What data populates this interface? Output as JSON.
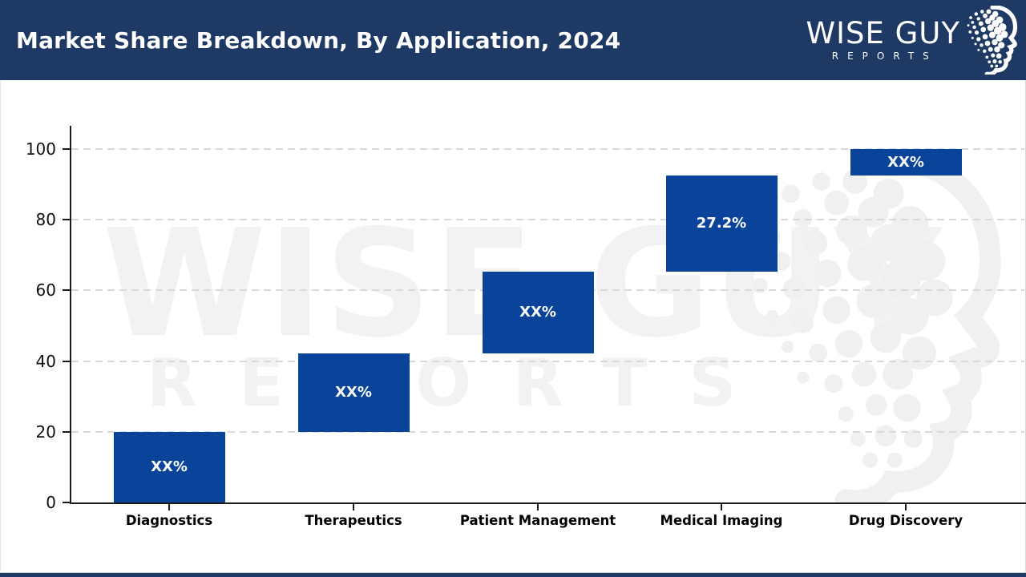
{
  "header": {
    "title": "Market Share Breakdown, By Application, 2024",
    "logo": {
      "name": "WISE GUY",
      "tagline": "REPORTS"
    }
  },
  "watermark": {
    "line1": "WISE GUY",
    "line2": "REPORTS"
  },
  "chart_data": {
    "type": "bar",
    "subtype": "waterfall-floating-segments",
    "title": "Market Share Breakdown, By Application, 2024",
    "categories": [
      "Diagnostics",
      "Therapeutics",
      "Patient Management",
      "Medical Imaging",
      "Drug Discovery"
    ],
    "segments": [
      {
        "category": "Diagnostics",
        "label": "XX%",
        "start": 0,
        "end": 20
      },
      {
        "category": "Therapeutics",
        "label": "XX%",
        "start": 20,
        "end": 42.2
      },
      {
        "category": "Patient Management",
        "label": "XX%",
        "start": 42.2,
        "end": 65.3
      },
      {
        "category": "Medical Imaging",
        "label": "27.2%",
        "start": 65.3,
        "end": 92.5
      },
      {
        "category": "Drug Discovery",
        "label": "XX%",
        "start": 92.5,
        "end": 100
      }
    ],
    "yticks": [
      0,
      20,
      40,
      60,
      80,
      100
    ],
    "ylim": [
      0,
      105
    ],
    "xlabel": "",
    "ylabel": "",
    "legend": "none",
    "grid": "horizontal-dashed",
    "bar_color": "#0a439a",
    "bar_label_color": "#ffffff"
  },
  "colors": {
    "header_bg": "#1f3965",
    "bar": "#0a439a",
    "grid": "#d9d9d9",
    "axis": "#1a1a1a",
    "watermark": "#f1f1f3"
  }
}
